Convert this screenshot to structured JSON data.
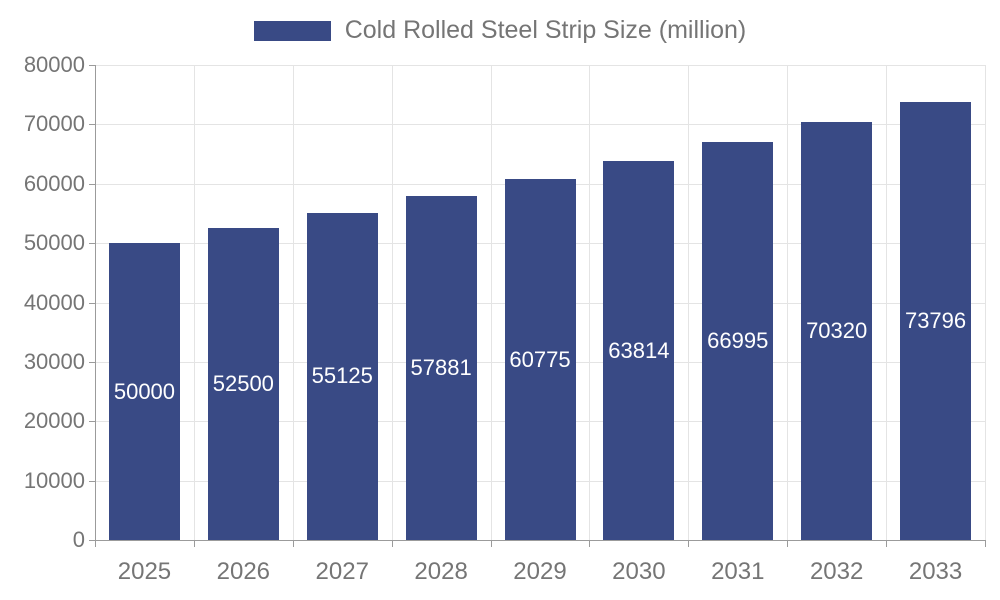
{
  "chart_data": {
    "type": "bar",
    "title": "Cold Rolled Steel Strip Size (million)",
    "legend": [
      "Cold Rolled Steel Strip Size (million)"
    ],
    "legend_position": "top-center",
    "categories": [
      "2025",
      "2026",
      "2027",
      "2028",
      "2029",
      "2030",
      "2031",
      "2032",
      "2033"
    ],
    "values": [
      50000,
      52500,
      55125,
      57881,
      60775,
      63814,
      66995,
      70320,
      73796
    ],
    "xlabel": "",
    "ylabel": "",
    "ylim": [
      0,
      80000
    ],
    "ytick_interval": 10000,
    "ytick_labels": [
      "0",
      "10000",
      "20000",
      "30000",
      "40000",
      "50000",
      "60000",
      "70000",
      "80000"
    ],
    "grid": true,
    "bar_value_labels_inside": true,
    "colors": {
      "bar": "#394a85",
      "bar_label_text": "#ffffff",
      "axis_text": "#757575",
      "axis_line": "#9b9b9b",
      "gridline": "#e4e4e4",
      "background": "#ffffff"
    }
  }
}
